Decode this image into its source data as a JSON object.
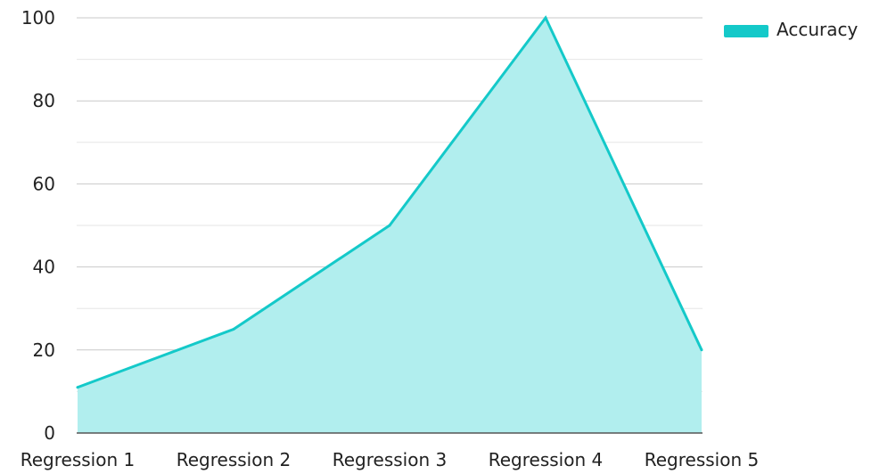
{
  "chart_data": {
    "type": "area",
    "categories": [
      "Regression 1",
      "Regression 2",
      "Regression 3",
      "Regression 4",
      "Regression 5"
    ],
    "series": [
      {
        "name": "Accuracy",
        "values": [
          11,
          25,
          50,
          100,
          20
        ]
      }
    ],
    "title": "",
    "xlabel": "",
    "ylabel": "",
    "ylim": [
      0,
      100
    ],
    "y_ticks": [
      0,
      20,
      40,
      60,
      80,
      100
    ],
    "y_minor_gridlines": [
      10,
      30,
      50,
      70,
      90
    ],
    "grid": true,
    "legend_position": "top-right",
    "colors": {
      "line": "#14c9c9",
      "fill": "#b1eeee",
      "grid": "#c9c9c9",
      "axis": "#555555"
    }
  }
}
